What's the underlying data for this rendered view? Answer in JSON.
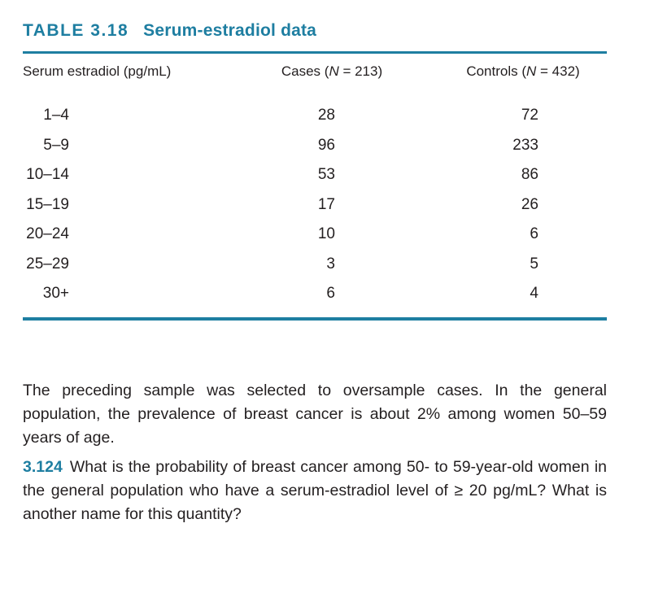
{
  "colors": {
    "accent": "#1e7ea1"
  },
  "table": {
    "label": "TABLE 3.18",
    "title": "Serum-estradiol data",
    "columns": {
      "col1": "Serum estradiol (pg/mL)",
      "col2": {
        "pre": "Cases (",
        "var": "N",
        "post": " = 213)"
      },
      "col3": {
        "pre": "Controls (",
        "var": "N",
        "post": " = 432)"
      }
    },
    "rows": [
      {
        "range": "1–4",
        "cases": "28",
        "controls": "72"
      },
      {
        "range": "5–9",
        "cases": "96",
        "controls": "233"
      },
      {
        "range": "10–14",
        "cases": "53",
        "controls": "86"
      },
      {
        "range": "15–19",
        "cases": "17",
        "controls": "26"
      },
      {
        "range": "20–24",
        "cases": "10",
        "controls": "6"
      },
      {
        "range": "25–29",
        "cases": "3",
        "controls": "5"
      },
      {
        "range": "30+",
        "cases": "6",
        "controls": "4"
      }
    ]
  },
  "paragraph": "The preceding sample was selected to oversample cases. In the general population, the prevalence of breast cancer is about 2% among women 50–59 years of age.",
  "question": {
    "number": "3.124",
    "text": "What is the probability of breast cancer among 50- to 59-year-old women in the general population who have a serum-estradiol level of ≥ 20 pg/mL? What is another name for this quantity?"
  },
  "chart_data": {
    "type": "table",
    "title": "TABLE 3.18 Serum-estradiol data",
    "columns": [
      "Serum estradiol (pg/mL)",
      "Cases (N = 213)",
      "Controls (N = 432)"
    ],
    "rows": [
      [
        "1–4",
        28,
        72
      ],
      [
        "5–9",
        96,
        233
      ],
      [
        "10–14",
        53,
        86
      ],
      [
        "15–19",
        17,
        26
      ],
      [
        "20–24",
        10,
        6
      ],
      [
        "25–29",
        3,
        5
      ],
      [
        "30+",
        6,
        4
      ]
    ]
  }
}
